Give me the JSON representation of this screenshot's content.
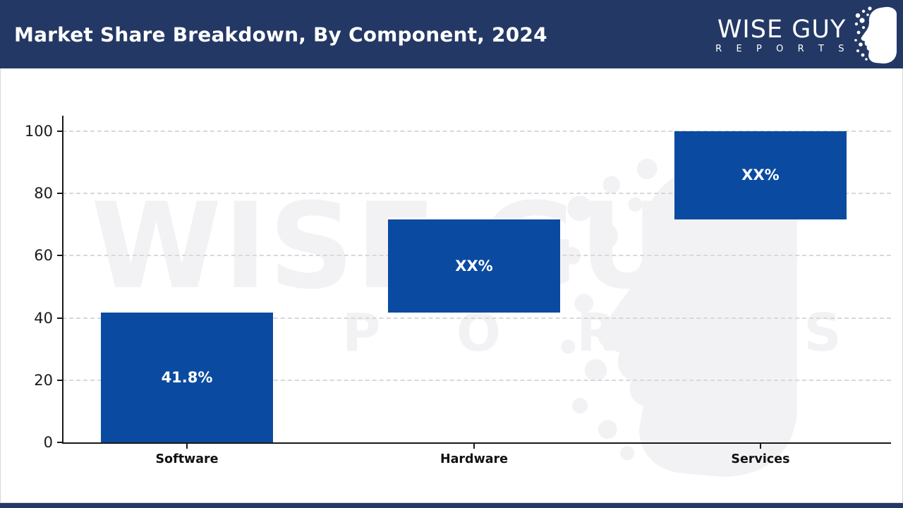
{
  "header": {
    "title": "Market Share Breakdown, By Component, 2024",
    "logo": {
      "brand": "WISE GUY",
      "sub": "REPORTS"
    }
  },
  "watermark": {
    "brand": "WISE GUY",
    "sub": "REPORTS"
  },
  "chart_data": {
    "type": "bar",
    "subtype": "floating-breakdown-waterfall",
    "title": "Market Share Breakdown, By Component, 2024",
    "categories": [
      "Software",
      "Hardware",
      "Services"
    ],
    "segments": [
      {
        "category": "Software",
        "start": 0,
        "end": 41.8,
        "label": "41.8%"
      },
      {
        "category": "Hardware",
        "start": 41.8,
        "end": 71.7,
        "label": "XX%"
      },
      {
        "category": "Services",
        "start": 71.7,
        "end": 100,
        "label": "XX%"
      }
    ],
    "yticks": [
      0,
      20,
      40,
      60,
      80,
      100
    ],
    "ylim": [
      0,
      105
    ],
    "xlabel": "",
    "ylabel": "",
    "grid": "horizontal-dashed",
    "legend": "none",
    "colors": {
      "bar": "#0b4aa1",
      "header_bg": "#233864",
      "grid": "#d8d8d8",
      "axis_text": "#1a1a1a",
      "bar_label_text": "#ffffff",
      "watermark": "#f2f2f4"
    }
  }
}
